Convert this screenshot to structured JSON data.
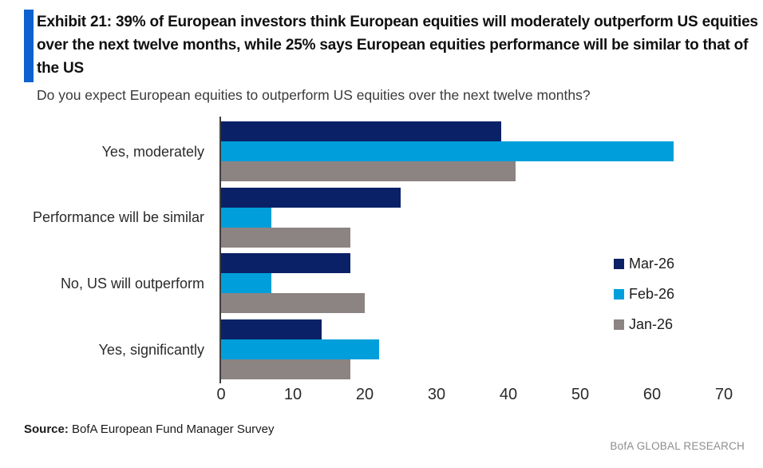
{
  "header": {
    "title": "Exhibit 21: 39% of European investors think European equities will moderately outperform US equities over the next twelve months, while 25% says European equities performance will be similar to that of the US",
    "subtitle": "Do you expect European equities to outperform US equities over the next twelve months?",
    "accent_color": "#0d62d0"
  },
  "chart_data": {
    "type": "bar",
    "orientation": "horizontal",
    "title": "",
    "xlabel": "",
    "ylabel": "",
    "categories": [
      "Yes, moderately",
      "Performance will be similar",
      "No, US will outperform",
      "Yes, significantly"
    ],
    "series": [
      {
        "name": "Mar-26",
        "color": "#0a2167",
        "values": [
          39,
          25,
          18,
          14
        ]
      },
      {
        "name": "Feb-26",
        "color": "#009fdb",
        "values": [
          63,
          7,
          7,
          22
        ]
      },
      {
        "name": "Jan-26",
        "color": "#8c8482",
        "values": [
          41,
          18,
          20,
          18
        ]
      }
    ],
    "xlim": [
      0,
      70
    ],
    "x_ticks": [
      0,
      10,
      20,
      30,
      40,
      50,
      60,
      70
    ],
    "grid": false,
    "legend_position": "right"
  },
  "footer": {
    "source_label": "Source:",
    "source_text": " BofA European Fund Manager Survey",
    "brand": "BofA GLOBAL RESEARCH"
  }
}
